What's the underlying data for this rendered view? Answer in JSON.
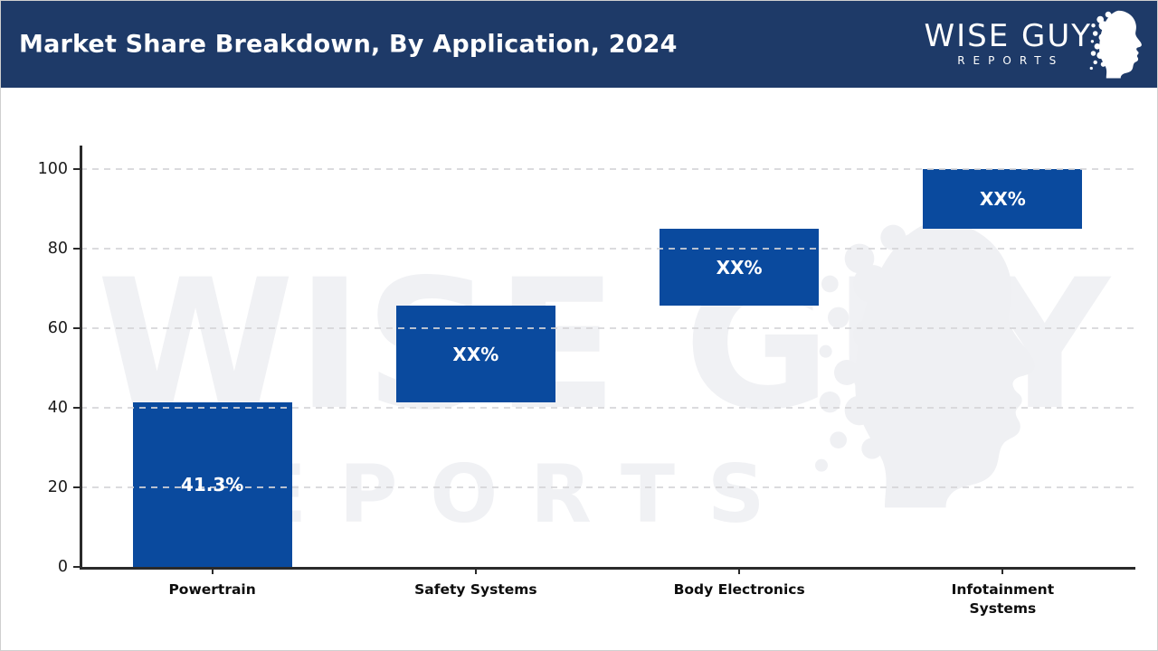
{
  "header": {
    "title": "Market Share Breakdown, By Application, 2024",
    "bg_color": "#1e3a68",
    "logo": {
      "line1": "WISE GUY",
      "line2": "REPORTS"
    }
  },
  "watermark": {
    "line1": "WISE GUY",
    "line2": "REPORTS"
  },
  "chart_data": {
    "type": "bar",
    "subtype": "waterfall",
    "title": "Market Share Breakdown, By Application, 2024",
    "categories": [
      "Powertrain",
      "Safety Systems",
      "Body Electronics",
      "Infotainment Systems"
    ],
    "segments": [
      {
        "category": "Powertrain",
        "start": 0,
        "end": 41.3,
        "label": "41.3%"
      },
      {
        "category": "Safety Systems",
        "start": 41.3,
        "end": 65.6,
        "label": "XX%"
      },
      {
        "category": "Body Electronics",
        "start": 65.6,
        "end": 85.0,
        "label": "XX%"
      },
      {
        "category": "Infotainment Systems",
        "start": 85.0,
        "end": 100.0,
        "label": "XX%"
      }
    ],
    "ylim": [
      0,
      100
    ],
    "yticks": [
      0,
      20,
      40,
      60,
      80,
      100
    ],
    "grid": "horizontal dashed, drawn over bars",
    "legend": "none",
    "bar_color": "#0a4a9e",
    "bar_label_color": "#ffffff",
    "xlabel": "",
    "ylabel": ""
  }
}
